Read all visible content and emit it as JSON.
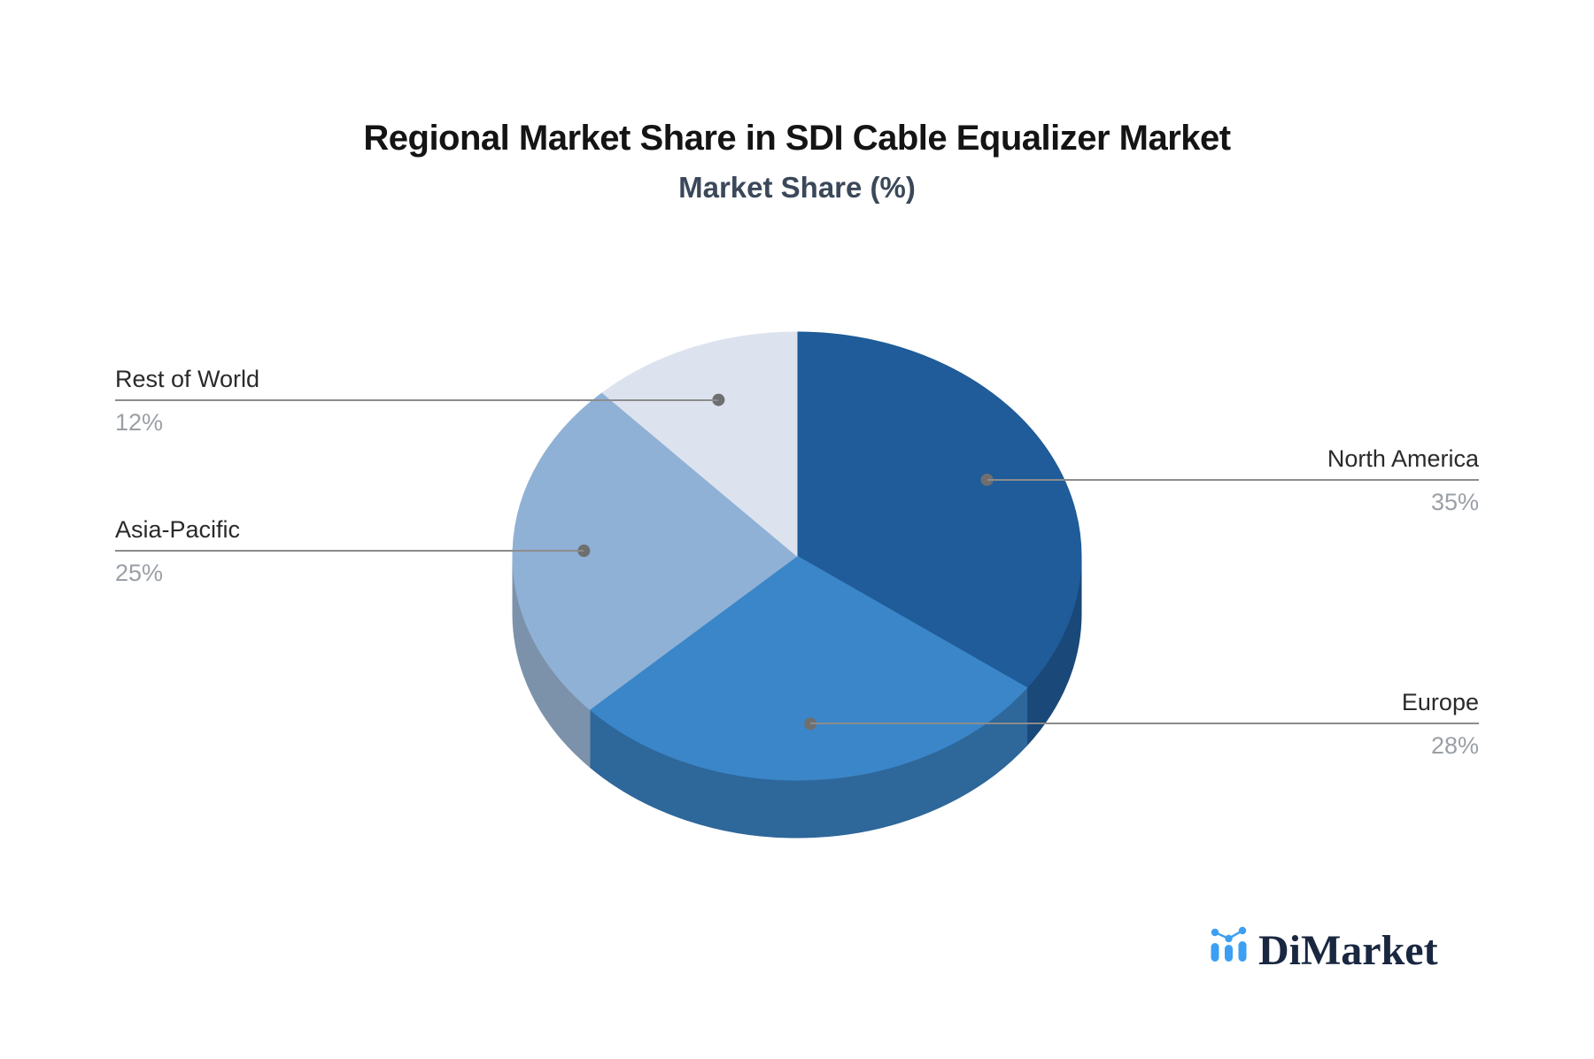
{
  "chart_data": {
    "type": "pie",
    "style": "3d",
    "title": "Regional Market Share in SDI Cable Equalizer Market",
    "subtitle": "Market Share (%)",
    "unit": "%",
    "direction": "clockwise",
    "start_angle_deg": 0,
    "legend_position": "none",
    "labeling": "leader-lines",
    "categories": [
      "North America",
      "Europe",
      "Asia-Pacific",
      "Rest of World"
    ],
    "values": [
      35,
      28,
      25,
      12
    ],
    "slices": [
      {
        "label": "North America",
        "value": 35,
        "display": "35%",
        "color": "#1f5c99",
        "side_color": "#1a4878",
        "callout_side": "right"
      },
      {
        "label": "Europe",
        "value": 28,
        "display": "28%",
        "color": "#3a86c8",
        "side_color": "#2e679a",
        "callout_side": "right"
      },
      {
        "label": "Asia-Pacific",
        "value": 25,
        "display": "25%",
        "color": "#8fb1d6",
        "side_color": "#7c92aa",
        "callout_side": "left"
      },
      {
        "label": "Rest of World",
        "value": 12,
        "display": "12%",
        "color": "#dde3ee",
        "side_color": "#c3cdda",
        "callout_side": "left"
      }
    ]
  },
  "branding": {
    "logo_text": "DiMarket",
    "logo_icon": "bar-chart-trend-icon",
    "logo_icon_color": "#3d9ff2",
    "logo_text_color": "#192740"
  },
  "colors": {
    "background": "#ffffff",
    "title": "#141414",
    "subtitle": "#3b4859",
    "callout_label": "#2a2a2a",
    "callout_percent": "#9aa0a6",
    "leader_line": "#8c8c8c",
    "leader_dot": "#6f6f6f"
  }
}
